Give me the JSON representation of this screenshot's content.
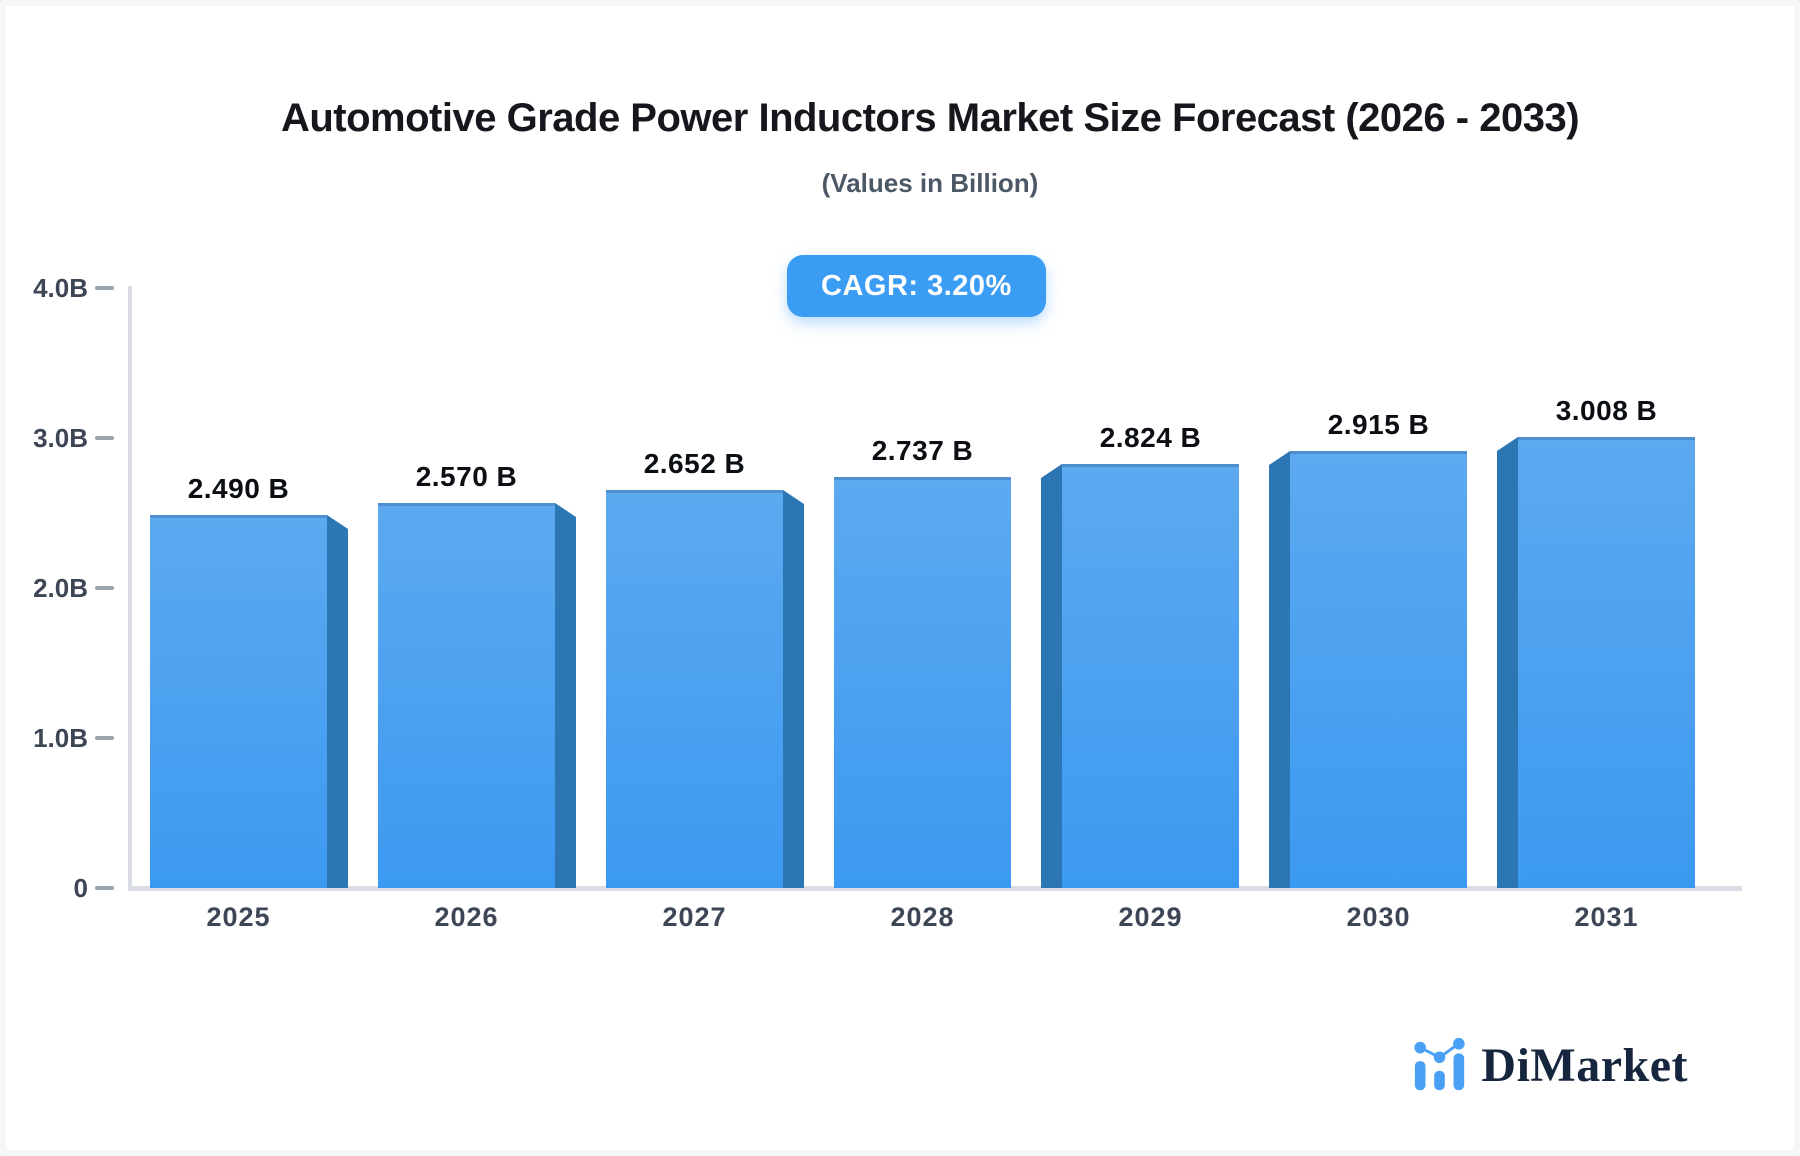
{
  "chart_data": {
    "type": "bar",
    "title": "Automotive Grade Power Inductors Market Size Forecast (2026 - 2033)",
    "subtitle": "(Values in Billion)",
    "annotation_badge": "CAGR: 3.20%",
    "categories": [
      "2025",
      "2026",
      "2027",
      "2028",
      "2029",
      "2030",
      "2031"
    ],
    "values": [
      2.49,
      2.57,
      2.652,
      2.737,
      2.824,
      2.915,
      3.008
    ],
    "bar_value_labels": [
      "2.490 B",
      "2.570 B",
      "2.652 B",
      "2.737 B",
      "2.824 B",
      "2.915 B",
      "3.008 B"
    ],
    "yticks": [
      "4.0B",
      "3.0B",
      "2.0B",
      "1.0B",
      "0"
    ],
    "ytick_values": [
      4.0,
      3.0,
      2.0,
      1.0,
      0
    ],
    "ylim": [
      0,
      4.0
    ],
    "xlabel": "",
    "ylabel": "",
    "grid": false,
    "legend": false
  },
  "branding": {
    "logo_text": "DiMarket"
  },
  "colors": {
    "accent_blue": "#3b9cf4",
    "bar_gradient_top": "#5ca9f0",
    "bar_gradient_bottom": "#3c99f1",
    "bar_side": "#2d76b4",
    "bar_top_edge": "#4e90cf",
    "axis_line": "#d9dde3",
    "tick_mark": "#9aa3ae",
    "title_text": "#15171d",
    "subtitle_text": "#4d5867",
    "axis_text": "#3d4654",
    "logo_navy": "#17263f",
    "logo_blue": "#4aa0f5"
  }
}
